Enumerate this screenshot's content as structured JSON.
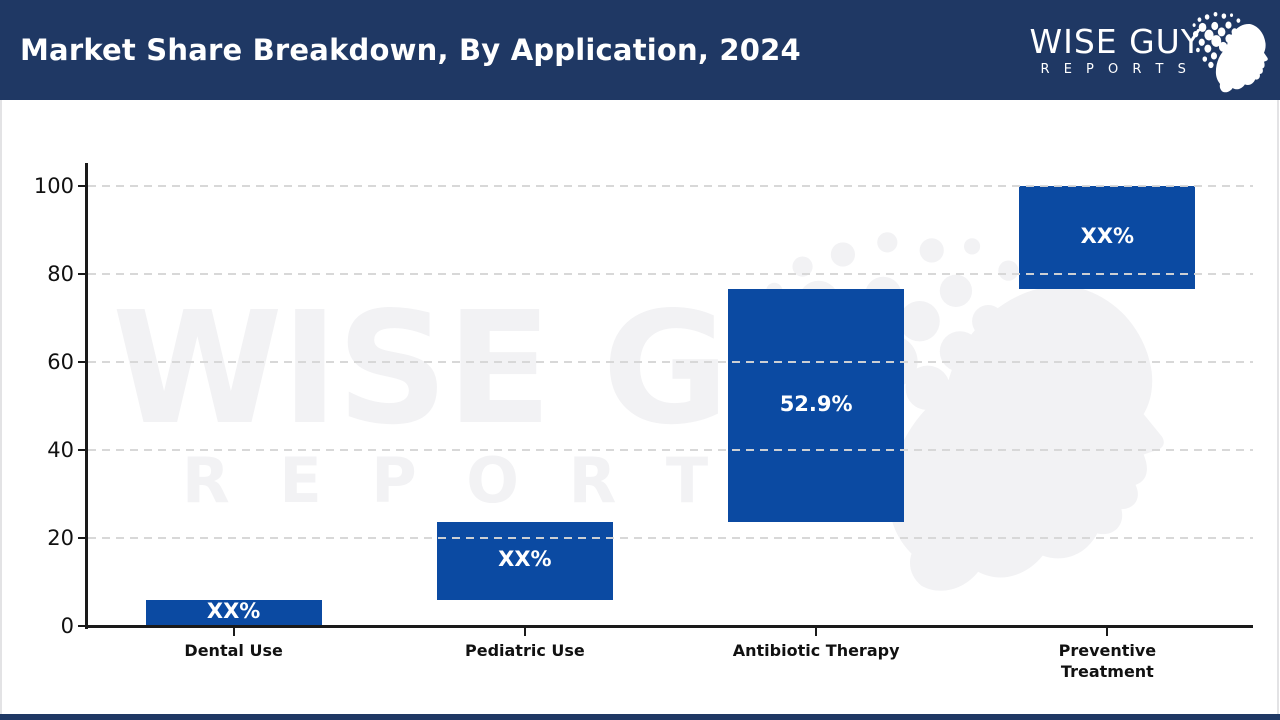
{
  "header": {
    "title": "Market Share Breakdown, By Application, 2024",
    "background_color": "#1f3864",
    "logo": {
      "primary": "WISE GUY",
      "secondary": "R E P O R T S",
      "icon": "dotted-head-profile-icon"
    }
  },
  "watermark": {
    "primary": "WISE GU",
    "secondary": "R E P O R T S",
    "color": "#f2f2f4"
  },
  "chart_data": {
    "type": "bar",
    "subtype": "waterfall",
    "title": "Market Share Breakdown, By Application, 2024",
    "xlabel": "",
    "ylabel": "",
    "categories": [
      "Dental Use",
      "Pediatric Use",
      "Antibiotic Therapy",
      "Preventive Treatment"
    ],
    "segments": [
      {
        "label": "Dental Use",
        "lines": [
          "Dental Use"
        ],
        "start": 0,
        "end": 5.9,
        "value": 5.9,
        "value_label": "XX%"
      },
      {
        "label": "Pediatric Use",
        "lines": [
          "Pediatric Use"
        ],
        "start": 5.9,
        "end": 23.6,
        "value": 17.7,
        "value_label": "XX%"
      },
      {
        "label": "Antibiotic Therapy",
        "lines": [
          "Antibiotic Therapy"
        ],
        "start": 23.6,
        "end": 76.5,
        "value": 52.9,
        "value_label": "52.9%"
      },
      {
        "label": "Preventive Treatment",
        "lines": [
          "Preventive",
          "Treatment"
        ],
        "start": 76.5,
        "end": 100,
        "value": 23.5,
        "value_label": "XX%"
      }
    ],
    "y_ticks": [
      0,
      20,
      40,
      60,
      80,
      100
    ],
    "ylim": [
      0,
      105
    ],
    "grid": "horizontal-dashed",
    "gridline_color": "#d9d9d9",
    "bar_color": "#0b4aa2",
    "axis_color": "#1a1a1a",
    "legend": "none"
  }
}
